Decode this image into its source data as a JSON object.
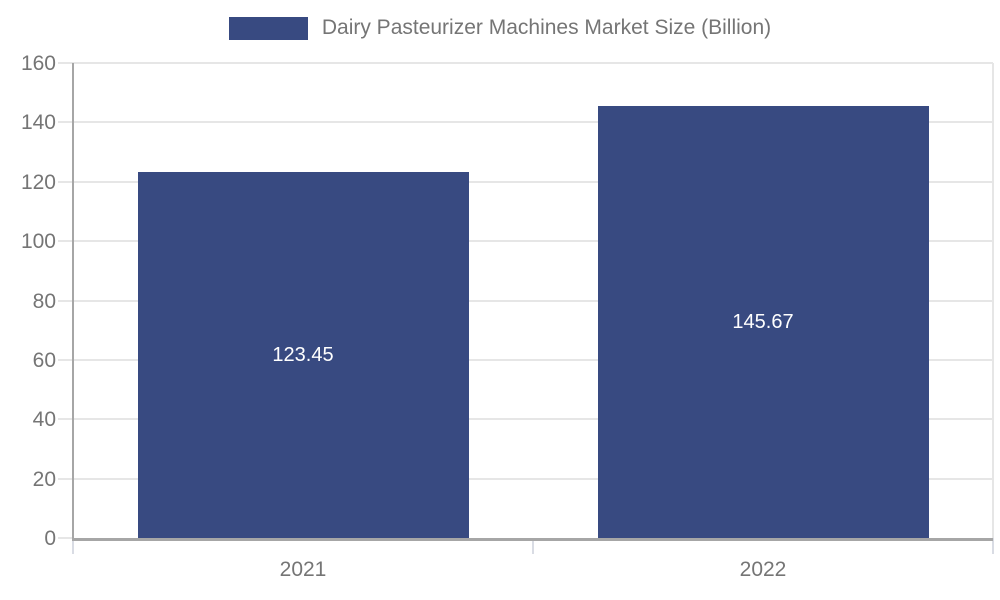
{
  "legend": {
    "label": "Dairy Pasteurizer Machines Market Size (Billion)"
  },
  "colors": {
    "bar": "#384a81",
    "grid": "#e6e6e6",
    "axis": "#a6a6a6",
    "boundary_tick": "#d9dce4",
    "tick_label": "#757575",
    "bar_label": "#ffffff",
    "background": "#ffffff"
  },
  "chart_data": {
    "type": "bar",
    "title": "Dairy Pasteurizer Machines Market Size (Billion)",
    "categories": [
      "2021",
      "2022"
    ],
    "series": [
      {
        "name": "Dairy Pasteurizer Machines Market Size (Billion)",
        "values": [
          123.45,
          145.67
        ],
        "value_labels": [
          "123.45",
          "145.67"
        ]
      }
    ],
    "xlabel": "",
    "ylabel": "",
    "ylim": [
      0,
      160
    ],
    "yticks": [
      0,
      20,
      40,
      60,
      80,
      100,
      120,
      140,
      160
    ],
    "grid": true,
    "legend_position": "top-center",
    "value_label_position": "center-inside",
    "bar_width_fraction": 0.72
  }
}
